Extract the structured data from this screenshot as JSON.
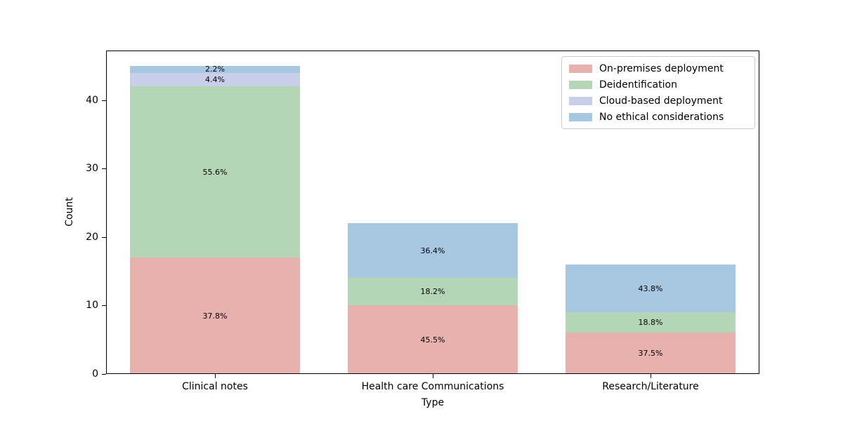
{
  "figure": {
    "background": "#ffffff"
  },
  "axes": {
    "spine_color": "#000000",
    "tick_color": "#000000",
    "text_color": "#000000"
  },
  "legend": {
    "border_color": "#cccccc",
    "background": "#ffffff",
    "position": "upper right"
  },
  "chart_data": {
    "type": "bar",
    "stacked": true,
    "title": "",
    "xlabel": "Type",
    "ylabel": "Count",
    "categories": [
      "Clinical notes",
      "Health care Communications",
      "Research/Literature"
    ],
    "series": [
      {
        "name": "On-premises deployment",
        "color": "#e7b1ae",
        "values": [
          17,
          10,
          6
        ],
        "percent_labels": [
          "37.8%",
          "45.5%",
          "37.5%"
        ]
      },
      {
        "name": "Deidentification",
        "color": "#b4d6b6",
        "values": [
          25,
          4,
          3
        ],
        "percent_labels": [
          "55.6%",
          "18.2%",
          "18.8%"
        ]
      },
      {
        "name": "Cloud-based deployment",
        "color": "#c9cfe8",
        "values": [
          2,
          0,
          0
        ],
        "percent_labels": [
          "4.4%",
          "",
          ""
        ]
      },
      {
        "name": "No ethical considerations",
        "color": "#a8c8e1",
        "values": [
          1,
          8,
          7
        ],
        "percent_labels": [
          "2.2%",
          "36.4%",
          "43.8%"
        ]
      }
    ],
    "totals": [
      45,
      22,
      16
    ],
    "yticks": [
      0,
      10,
      20,
      30,
      40
    ],
    "ylim": [
      0,
      47.25
    ],
    "bar_width_fraction": 0.78,
    "legend_position": "upper right",
    "grid": false
  }
}
